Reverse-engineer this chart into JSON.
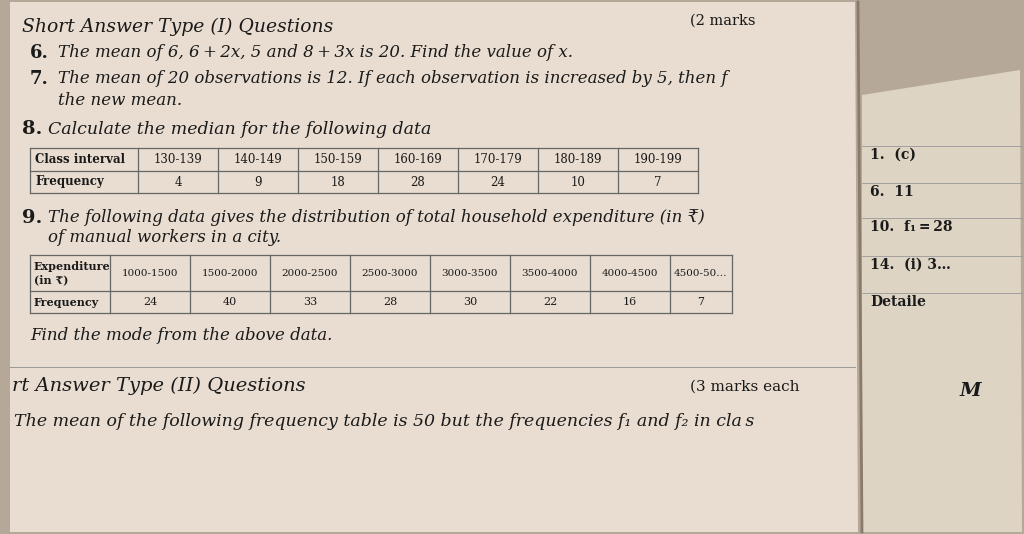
{
  "bg_color": "#b5a898",
  "paper_color": "#e8ddd0",
  "sidebar_color": "#ddd4c4",
  "title1": "Short Answer Type (I) Questions",
  "marks1": "(2 marks",
  "q6_num": "6.",
  "q6_text": "The mean of 6, 6 + 2x, 5 and 8 + 3x is 20. Find the value of x.",
  "q7_num": "7.",
  "q7_text1": "The mean of 20 observations is 12. If each observation is increased by 5, then f",
  "q7_text2": "the new mean.",
  "q8_num": "8.",
  "q8_text": "Calculate the median for the following data",
  "table8_headers": [
    "Class interval",
    "130-139",
    "140-149",
    "150-159",
    "160-169",
    "170-179",
    "180-189",
    "190-199"
  ],
  "table8_freq_label": "Frequency",
  "table8_freq": [
    "4",
    "9",
    "18",
    "28",
    "24",
    "10",
    "7"
  ],
  "q9_num": "9.",
  "q9_text1": "The following data gives the distribution of total household expenditure (in ₹)",
  "q9_text2": "of manual workers in a city.",
  "table9_exp_label1": "Expenditure",
  "table9_exp_label2": "(in ₹)",
  "table9_exp": [
    "1000-1500",
    "1500-2000",
    "2000-2500",
    "2500-3000",
    "3000-3500",
    "3500-4000",
    "4000-4500",
    "4500-50…"
  ],
  "table9_freq_label": "Frequency",
  "table9_freq": [
    "24",
    "40",
    "33",
    "28",
    "30",
    "22",
    "16",
    "7"
  ],
  "q9_foot": "Find the mode from the above data.",
  "title2": "rt Answer Type (II) Questions",
  "marks2": "(3 marks each",
  "q_last": "The mean of the following frequency table is 50 but the frequencies f₁ and f₂ in cla s",
  "sidebar_item1": "1.  (c)",
  "sidebar_item2": "6.  11",
  "sidebar_item3": "10.  f₁ = 28",
  "sidebar_item4": "14.  (i) 3…",
  "sidebar_item5": "Detaile",
  "sidebar_M": "M",
  "line_color": "#777777",
  "text_color": "#1a1a1a",
  "table_line_color": "#666666"
}
